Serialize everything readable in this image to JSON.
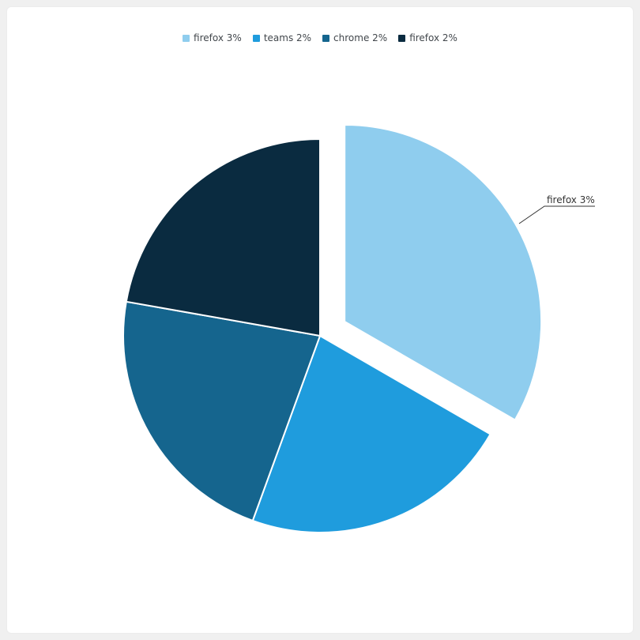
{
  "page": {
    "background_color": "#f0f0f0",
    "card_background_color": "#ffffff"
  },
  "chart_data": {
    "type": "pie",
    "title": "",
    "legend_position": "top",
    "categories": [
      "firefox 3%",
      "teams 2%",
      "chrome 2%",
      "firefox 2%"
    ],
    "values": [
      3,
      2,
      2,
      2
    ],
    "series": [
      {
        "label": "firefox 3%",
        "value": 3,
        "color": "#8fcdee",
        "selected": true
      },
      {
        "label": "teams 2%",
        "value": 2,
        "color": "#1f9cdd",
        "selected": false
      },
      {
        "label": "chrome 2%",
        "value": 2,
        "color": "#15658e",
        "selected": false
      },
      {
        "label": "firefox 2%",
        "value": 2,
        "color": "#0a2b40",
        "selected": false
      }
    ],
    "geometry": {
      "start_angle_deg": 0,
      "direction": "clockwise",
      "center": {
        "x": 405,
        "y": 425
      },
      "radius": 249,
      "explode_offset": 36,
      "slice_border_color": "#ffffff",
      "slice_border_width": 2
    },
    "callout": {
      "text": "firefox 3%",
      "color": "#333333",
      "line_points": [
        [
          657,
          283
        ],
        [
          689,
          261
        ],
        [
          753,
          261
        ]
      ],
      "text_anchor": {
        "x": 692,
        "y": 257
      }
    }
  }
}
